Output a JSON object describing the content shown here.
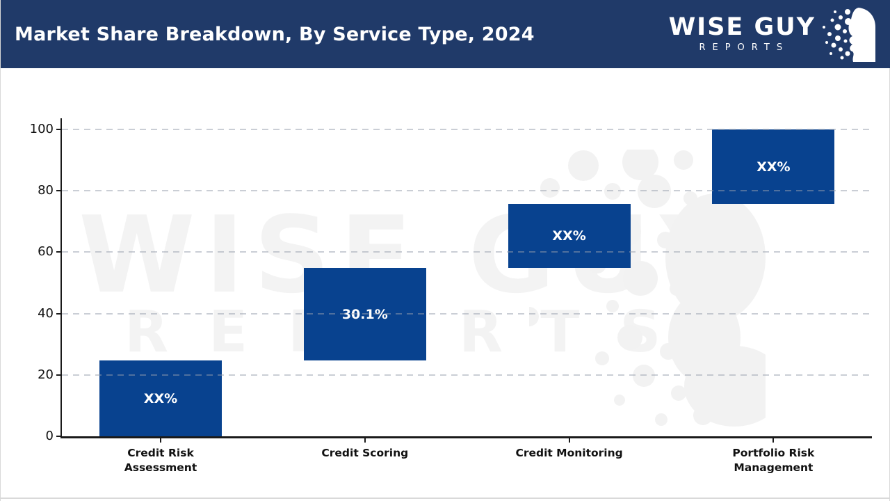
{
  "header": {
    "title": "Market Share Breakdown, By Service Type, 2024",
    "logo": {
      "line1": "WISE GUY",
      "line2": "REPORTS",
      "icon": "dotted-face-profile"
    }
  },
  "watermark": {
    "line1": "WISE GUY",
    "line2": "REPORTS"
  },
  "chart_data": {
    "type": "bar",
    "subtype": "waterfall",
    "title": "Market Share Breakdown, By Service Type, 2024",
    "categories": [
      "Credit Risk\nAssessment",
      "Credit Scoring",
      "Credit Monitoring",
      "Portfolio Risk\nManagement"
    ],
    "bars": [
      {
        "category": "Credit Risk Assessment",
        "start": 0,
        "end": 24.7,
        "label": "XX%"
      },
      {
        "category": "Credit Scoring",
        "start": 24.7,
        "end": 54.8,
        "label": "30.1%"
      },
      {
        "category": "Credit Monitoring",
        "start": 54.8,
        "end": 75.6,
        "label": "XX%"
      },
      {
        "category": "Portfolio Risk Management",
        "start": 75.6,
        "end": 100,
        "label": "XX%"
      }
    ],
    "values_shown": [
      "XX%",
      "30.1%",
      "XX%",
      "XX%"
    ],
    "xlabel": "",
    "ylabel": "",
    "yticks": [
      0,
      20,
      40,
      60,
      80,
      100
    ],
    "ylim": [
      0,
      103.5
    ],
    "grid": "dashed-horizontal",
    "legend": null,
    "bar_color": "#08428f",
    "bar_label_color": "#ffffff",
    "header_color": "#203a69",
    "watermark_color": "#f3f3f3"
  }
}
